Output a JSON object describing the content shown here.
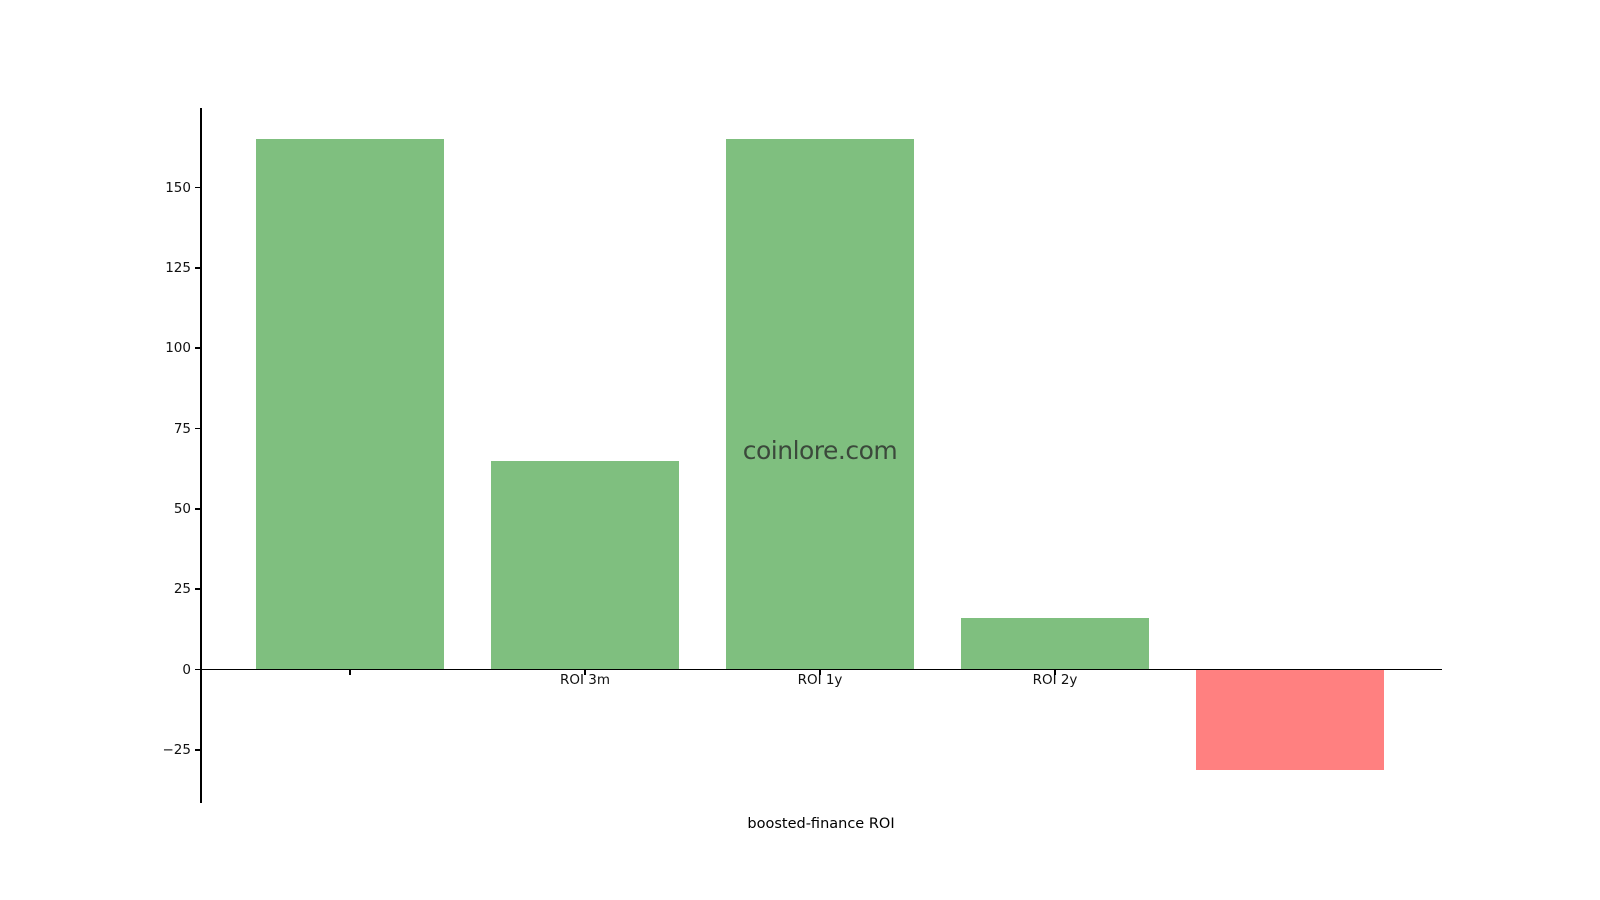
{
  "chart_data": {
    "type": "bar",
    "title": "",
    "xlabel": "boosted-finance ROI",
    "ylabel": "",
    "categories": [
      "",
      "ROI 3m",
      "ROI 1y",
      "ROI 2y",
      ""
    ],
    "values": [
      165,
      65,
      165,
      16,
      -31
    ],
    "bar_colors": [
      "#7fbf7f",
      "#7fbf7f",
      "#7fbf7f",
      "#7fbf7f",
      "#ff8080"
    ],
    "yticks": [
      150,
      125,
      100,
      75,
      50,
      25,
      0,
      -25
    ],
    "ytick_labels": [
      "150",
      "125",
      "100",
      "75",
      "50",
      "25",
      "0",
      "−25"
    ],
    "xticks_shown": [
      0,
      1,
      2,
      3
    ],
    "ylim": [
      -41.5,
      174.7
    ],
    "grid": false,
    "legend": null,
    "watermark": "coinlore.com",
    "colors": {
      "positive": "#7fbf7f",
      "negative": "#ff8080",
      "axis": "#000000",
      "tick_text": "#111111",
      "watermark_text": "rgba(40,40,40,0.78)"
    }
  }
}
